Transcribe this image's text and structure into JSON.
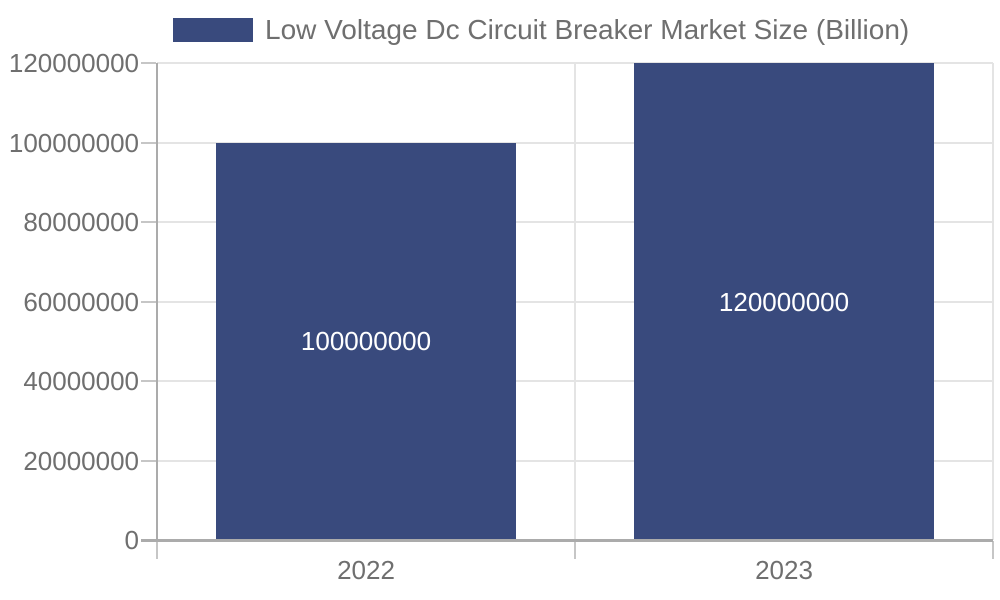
{
  "legend": {
    "label": "Low Voltage Dc Circuit Breaker Market Size (Billion)"
  },
  "chart_data": {
    "type": "bar",
    "title": "",
    "xlabel": "",
    "ylabel": "",
    "categories": [
      "2022",
      "2023"
    ],
    "values": [
      100000000,
      120000000
    ],
    "bar_value_labels": [
      "100000000",
      "120000000"
    ],
    "series": [
      {
        "name": "Low Voltage Dc Circuit Breaker Market Size (Billion)",
        "values": [
          100000000,
          120000000
        ]
      }
    ],
    "ylim": [
      0,
      120000000
    ],
    "y_ticks": [
      0,
      20000000,
      40000000,
      60000000,
      80000000,
      100000000,
      120000000
    ],
    "y_tick_labels": [
      "0",
      "20000000",
      "40000000",
      "60000000",
      "80000000",
      "100000000",
      "120000000"
    ],
    "grid": true,
    "legend_position": "top-left"
  },
  "colors": {
    "bar_fill": "#394A7D",
    "bar_label_text": "#FFFFFF",
    "tick_label_text": "#6F6F6F",
    "legend_text": "#6F6F6F",
    "gridline": "#E4E4E4",
    "axis_line": "#ABABAB",
    "tick_mark": "#C6C6C6",
    "background": "#FFFFFF"
  }
}
